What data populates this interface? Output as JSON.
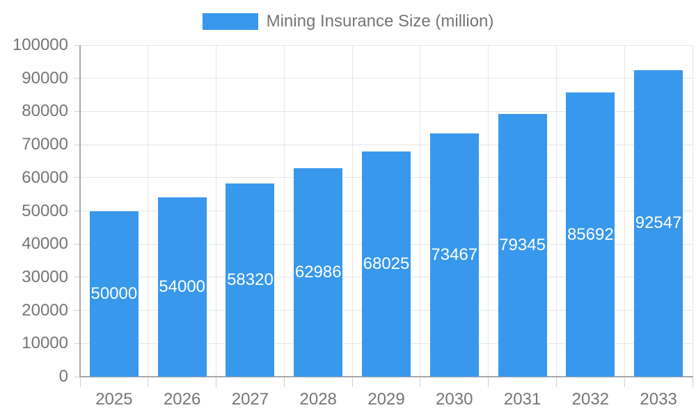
{
  "chart_data": {
    "type": "bar",
    "title": "",
    "legend": {
      "label": "Mining Insurance Size (million)",
      "position": "top"
    },
    "categories": [
      "2025",
      "2026",
      "2027",
      "2028",
      "2029",
      "2030",
      "2031",
      "2032",
      "2033"
    ],
    "series": [
      {
        "name": "Mining Insurance Size (million)",
        "values": [
          50000,
          54000,
          58320,
          62986,
          68025,
          73467,
          79345,
          85692,
          92547
        ]
      }
    ],
    "value_labels_shown": true,
    "yticks": [
      0,
      10000,
      20000,
      30000,
      40000,
      50000,
      60000,
      70000,
      80000,
      90000,
      100000
    ],
    "ylim": [
      0,
      100000
    ],
    "xlabel": "",
    "ylabel": "",
    "grid": true,
    "colors": {
      "bar": "#3898EC",
      "value_label": "#ffffff",
      "tick_label": "#757575",
      "legend_label": "#757575",
      "grid": "#e6e6e6",
      "tick_mark": "#cfcfcf",
      "axis": "#a8a8a8",
      "background": "#ffffff"
    }
  }
}
